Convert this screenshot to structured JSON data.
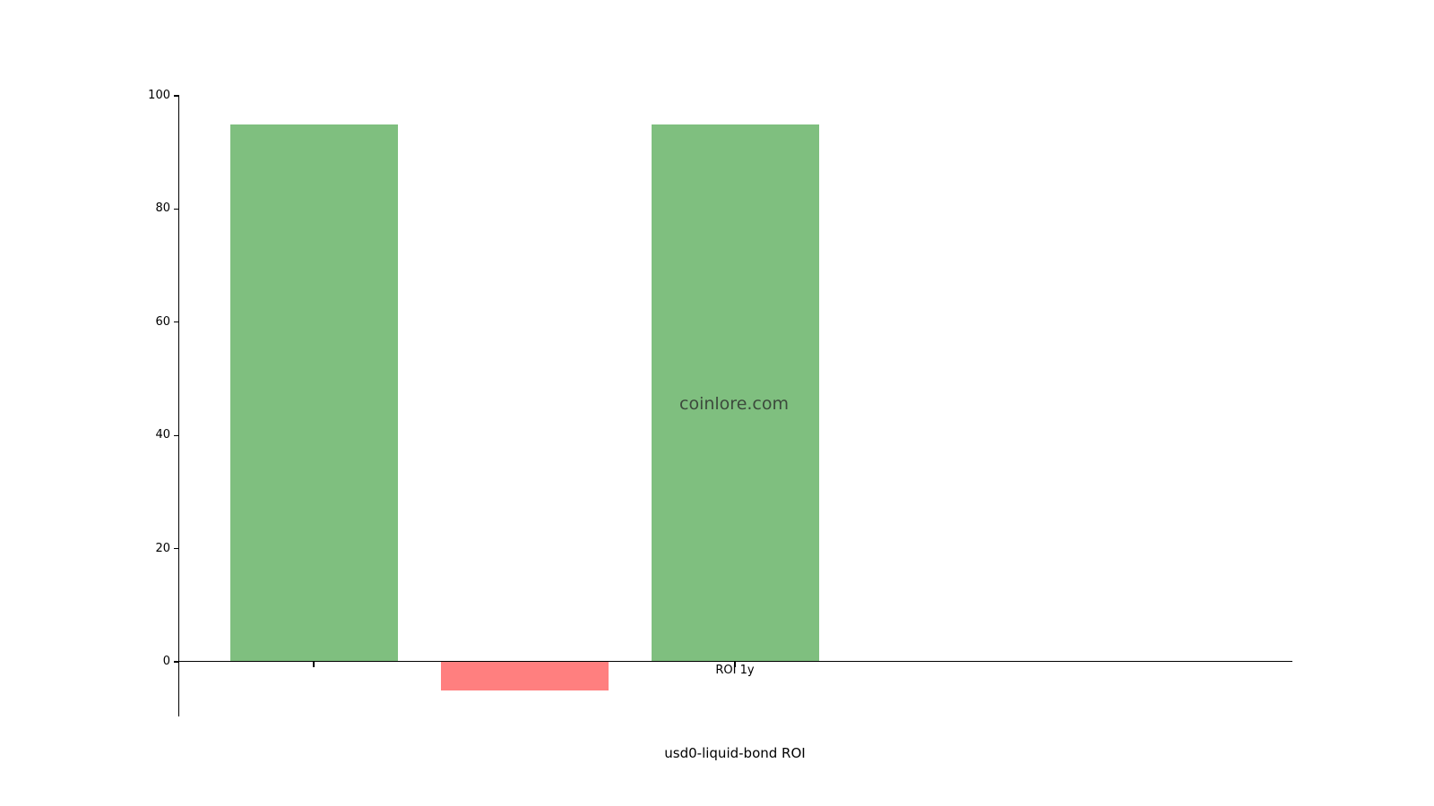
{
  "figure": {
    "background_color": "#ffffff",
    "watermark": "coinlore.com",
    "watermark_color": "#3c4a3c"
  },
  "chart_data": {
    "type": "bar",
    "title": "",
    "xlabel": "usd0-liquid-bond ROI",
    "ylabel": "",
    "categories": [
      "",
      "",
      "ROI 1y"
    ],
    "values": [
      95,
      -5,
      95
    ],
    "bar_colors": [
      "#7fbf7f",
      "#ff7f7f",
      "#7fbf7f"
    ],
    "positive_color": "#7fbf7f",
    "negative_color": "#ff7f7f",
    "axis_color": "#000000",
    "y_ticks": [
      0,
      20,
      40,
      60,
      80,
      100
    ],
    "x_tick_indices_with_marks": [
      0,
      2
    ],
    "ylim": [
      -10,
      100
    ],
    "grid": false,
    "legend": false,
    "annotations": [
      "coinlore.com"
    ]
  }
}
